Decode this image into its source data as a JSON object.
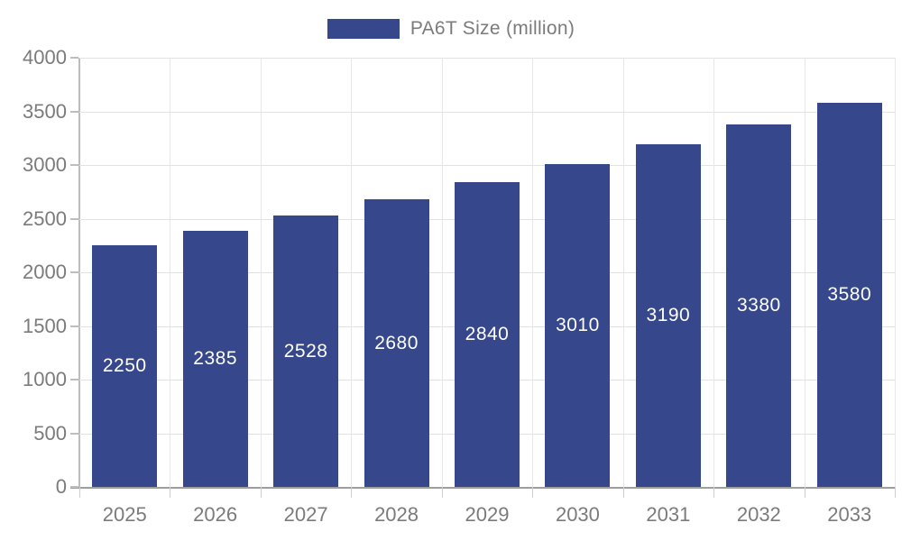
{
  "chart_data": {
    "type": "bar",
    "title": "",
    "legend": "PA6T Size (million)",
    "legend_position": "top",
    "categories": [
      "2025",
      "2026",
      "2027",
      "2028",
      "2029",
      "2030",
      "2031",
      "2032",
      "2033"
    ],
    "series": [
      {
        "name": "PA6T Size (million)",
        "values": [
          2250,
          2385,
          2528,
          2680,
          2840,
          3010,
          3190,
          3380,
          3580
        ]
      }
    ],
    "xlabel": "",
    "ylabel": "",
    "ylim": [
      0,
      4000
    ],
    "ytick_step": 500,
    "grid": true,
    "bar_color": "#36478C",
    "bar_label_color": "#ffffff",
    "axis_text_color": "#7b7b7b",
    "grid_color": "#e2e2e2"
  }
}
